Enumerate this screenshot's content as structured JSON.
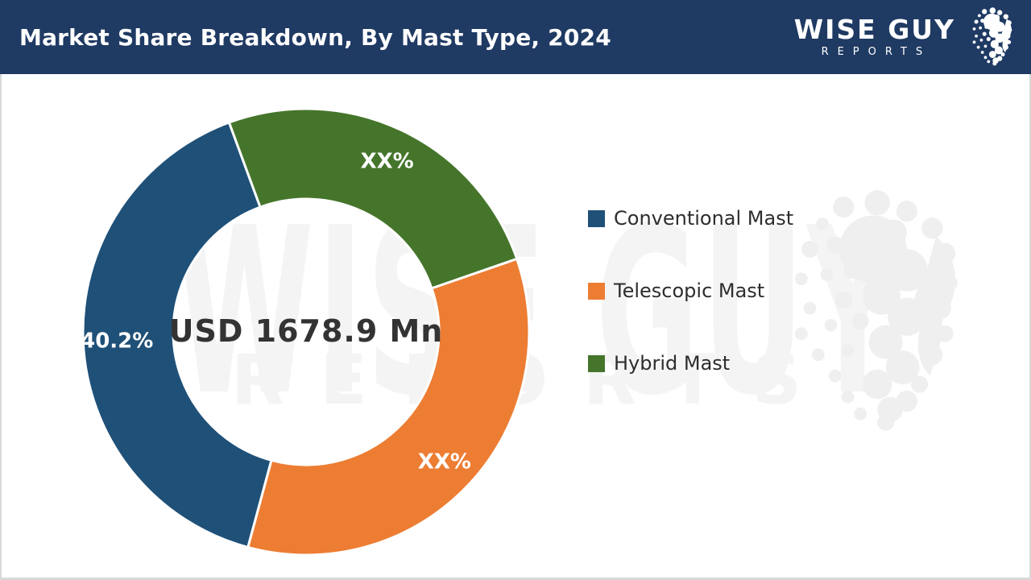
{
  "header": {
    "title": "Market Share Breakdown, By Mast Type, 2024",
    "brand": {
      "name_line": "WISE GUY",
      "sub_line": "REPORTS"
    }
  },
  "watermark": {
    "line1": "WISE GUY",
    "line2": "REPORTS"
  },
  "chart_data": {
    "type": "donut",
    "title": "Market Share Breakdown, By Mast Type, 2024",
    "center_label": "USD 1678.9 Mn",
    "start_angle_deg": 195.1,
    "unit": "percent",
    "slices": [
      {
        "name": "Conventional Mast",
        "value": 40.2,
        "display_label": "40.2%",
        "color": "#1f5078"
      },
      {
        "name": "Hybrid Mast",
        "value": 25.3,
        "display_label": "XX%",
        "color": "#45752b"
      },
      {
        "name": "Telescopic Mast",
        "value": 34.5,
        "display_label": "XX%",
        "color": "#ec7d33"
      }
    ],
    "legend": [
      {
        "label": "Conventional Mast",
        "color": "#1f5078"
      },
      {
        "label": "Telescopic Mast",
        "color": "#ec7d33"
      },
      {
        "label": "Hybrid Mast",
        "color": "#45752b"
      }
    ],
    "legend_position": "right",
    "colors": {
      "header_bar": "#1f3a63",
      "center_text": "#333333",
      "watermark": "#f4f4f4"
    }
  }
}
